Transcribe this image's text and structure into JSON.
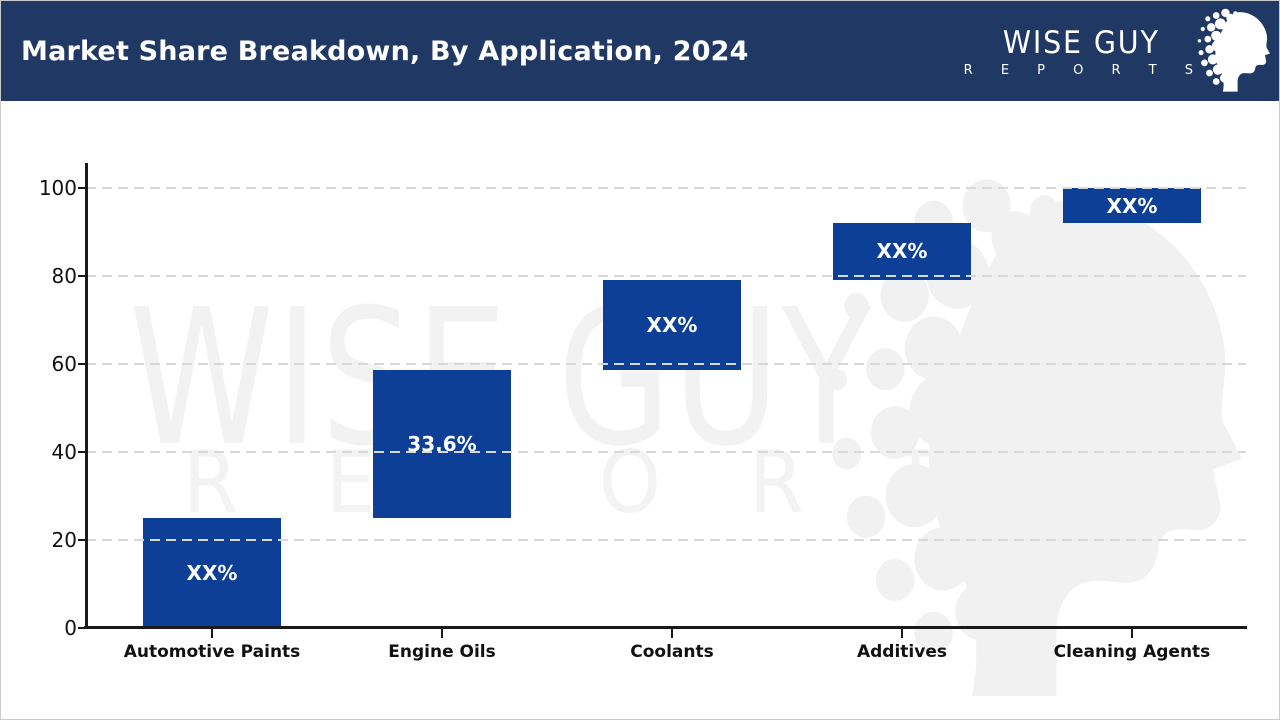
{
  "header": {
    "title": "Market Share Breakdown, By Application, 2024",
    "bg_color": "#203864",
    "logo": {
      "line1": "WISE GUY",
      "line2": "R E P O R T S",
      "head_icon": "dotted-face-profile"
    }
  },
  "watermark": {
    "line1": "WISE GUY",
    "line2": "R E P O R T S",
    "head_icon": "dotted-face-profile"
  },
  "chart_data": {
    "type": "bar",
    "subtype": "waterfall",
    "title": "Market Share Breakdown, By Application, 2024",
    "xlabel": "",
    "ylabel": "",
    "categories": [
      "Automotive Paints",
      "Engine Oils",
      "Coolants",
      "Additives",
      "Cleaning Agents"
    ],
    "segments": [
      {
        "category": "Automotive Paints",
        "start": 0,
        "end": 25,
        "label": "XX%"
      },
      {
        "category": "Engine Oils",
        "start": 25,
        "end": 58.6,
        "label": "33.6%"
      },
      {
        "category": "Coolants",
        "start": 58.6,
        "end": 79.2,
        "label": "XX%"
      },
      {
        "category": "Additives",
        "start": 79.2,
        "end": 92,
        "label": "XX%"
      },
      {
        "category": "Cleaning Agents",
        "start": 92,
        "end": 100,
        "label": "XX%"
      }
    ],
    "yticks": [
      0,
      20,
      40,
      60,
      80,
      100
    ],
    "ylim": [
      0,
      108
    ],
    "grid": "horizontal-dashed",
    "legend": "none",
    "bar_color": "#0d3f96",
    "bar_label_color": "#ffffff",
    "gridline_color": "#d8d8d8",
    "axis_color": "#1a1a1a"
  }
}
